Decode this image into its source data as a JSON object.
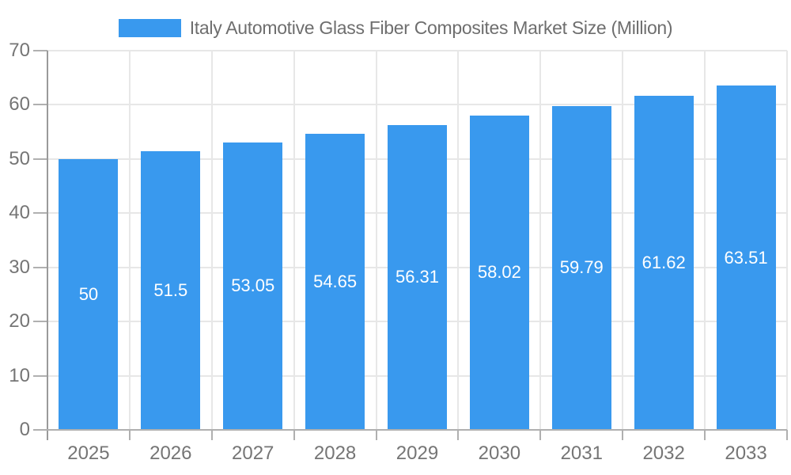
{
  "colors": {
    "bar": "#3999ee",
    "bar_label": "#ffffff",
    "axis_text": "#757575",
    "legend_text": "#6e6e6e",
    "axis_line": "#b0b0b0",
    "axis_line_dark": "#9a9a9a",
    "grid_line": "#e7e7e7"
  },
  "legend": {
    "label": "Italy Automotive Glass Fiber Composites Market Size (Million)"
  },
  "chart_data": {
    "type": "bar",
    "title": "Italy Automotive Glass Fiber Composites Market Size (Million)",
    "categories": [
      "2025",
      "2026",
      "2027",
      "2028",
      "2029",
      "2030",
      "2031",
      "2032",
      "2033"
    ],
    "series": [
      {
        "name": "Italy Automotive Glass Fiber Composites Market Size (Million)",
        "values": [
          50,
          51.5,
          53.05,
          54.65,
          56.31,
          58.02,
          59.79,
          61.62,
          63.51
        ]
      }
    ],
    "bar_value_labels": [
      "50",
      "51.5",
      "53.05",
      "54.65",
      "56.31",
      "58.02",
      "59.79",
      "61.62",
      "63.51"
    ],
    "xlabel": "",
    "ylabel": "",
    "ylim": [
      0,
      70
    ],
    "yticks": [
      0,
      10,
      20,
      30,
      40,
      50,
      60,
      70
    ],
    "grid": true,
    "legend_position": "top"
  }
}
